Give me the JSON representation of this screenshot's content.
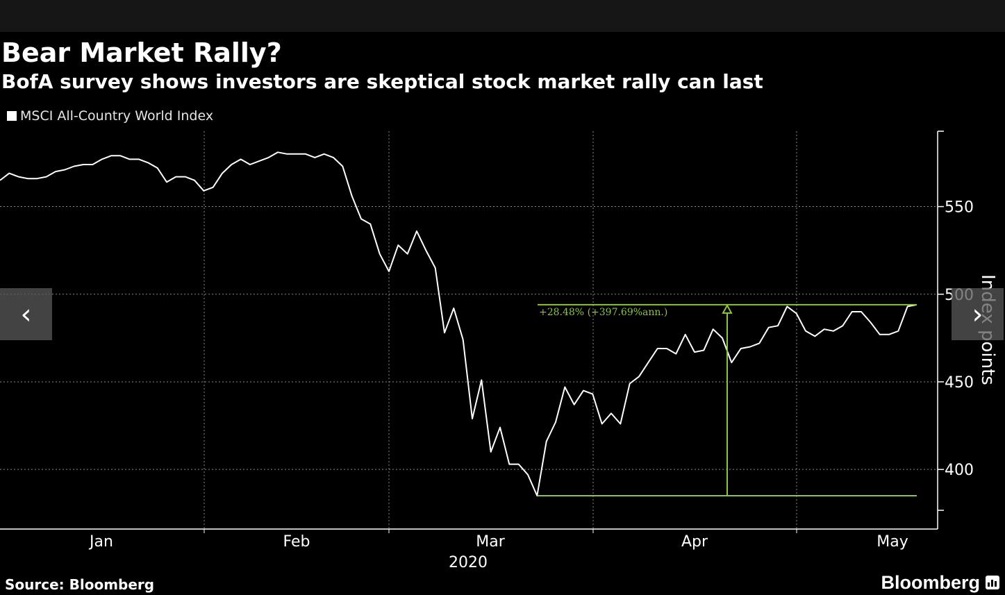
{
  "title": "Bear Market Rally?",
  "subtitle": "BofA survey shows investors are skeptical stock market rally can last",
  "legend": {
    "label": "MSCI All-Country World Index"
  },
  "footer": {
    "source": "Source: Bloomberg",
    "brand": "Bloomberg"
  },
  "nav": {
    "prev": "‹",
    "next": "›"
  },
  "colors": {
    "series": "#ffffff",
    "annotation": "#8cc63f",
    "grid": "#8a8a8a",
    "background": "#000000"
  },
  "chart_data": {
    "type": "line",
    "series": [
      {
        "name": "MSCI All-Country World Index",
        "values": [
          565,
          569,
          567,
          566,
          566,
          567,
          570,
          571,
          573,
          574,
          574,
          577,
          579,
          579,
          577,
          577,
          575,
          572,
          564,
          567,
          567,
          565,
          559,
          561,
          569,
          574,
          577,
          574,
          576,
          578,
          581,
          580,
          580,
          580,
          578,
          580,
          578,
          573,
          556,
          543,
          540,
          523,
          513,
          528,
          523,
          536,
          525,
          515,
          478,
          492,
          474,
          429,
          451,
          410,
          424,
          403,
          403,
          397,
          385,
          416,
          427,
          447,
          437,
          445,
          443,
          426,
          432,
          426,
          449,
          453,
          461,
          469,
          469,
          466,
          477,
          467,
          468,
          480,
          475,
          461,
          469,
          470,
          472,
          481,
          482,
          493,
          489,
          479,
          476,
          480,
          479,
          482,
          490,
          490,
          484,
          477,
          477,
          479,
          493,
          494
        ]
      }
    ],
    "x_tick_labels": [
      "Jan",
      "Feb",
      "Mar",
      "Apr",
      "May"
    ],
    "x_year_label": "2020",
    "y_ticks": [
      400,
      450,
      500,
      550
    ],
    "ylabel": "Index points",
    "ylim": [
      366,
      593
    ],
    "grid": true,
    "annotation": {
      "label": "+28.48% (+397.69%ann.)",
      "low_value": 385,
      "high_value": 494
    }
  }
}
